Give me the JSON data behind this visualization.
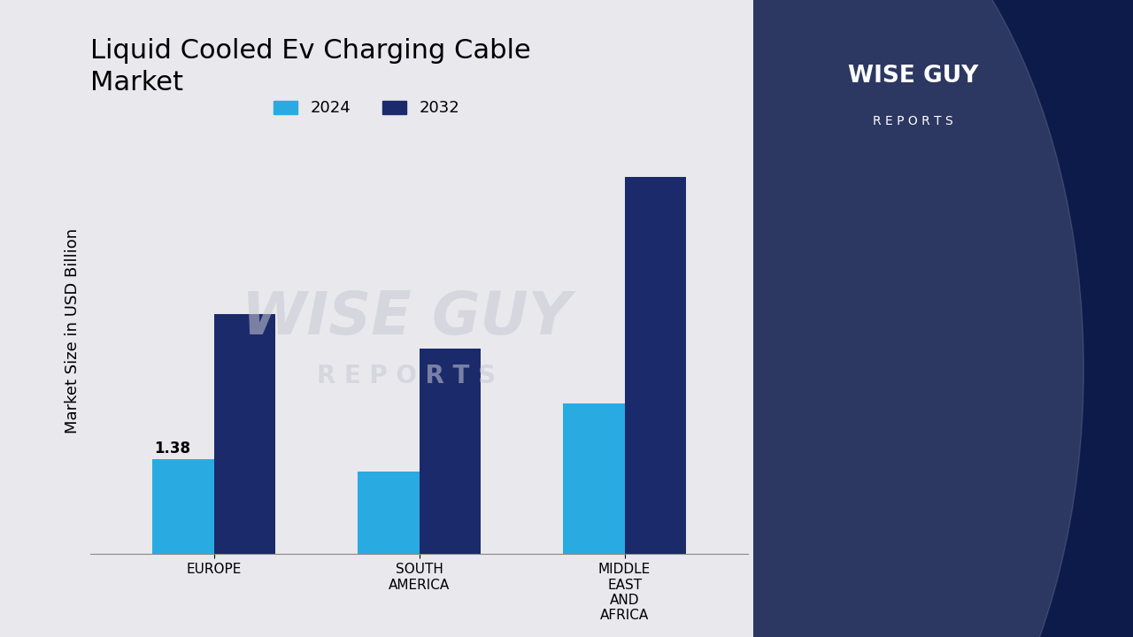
{
  "title": "Liquid Cooled Ev Charging Cable\nMarket",
  "ylabel": "Market Size in USD Billion",
  "categories": [
    "EUROPE",
    "SOUTH\nAMERICA",
    "MIDDLE\nEAST\nAND\nAFRICA"
  ],
  "values_2024": [
    1.38,
    1.2,
    2.2
  ],
  "values_2032": [
    3.5,
    3.0,
    5.5
  ],
  "color_2024": "#29ABE2",
  "color_2032": "#1B2A6B",
  "background_color": "#E8E8ED",
  "right_panel_color": "#0D1B4B",
  "title_color": "#000000",
  "annotation_text": "1.38",
  "legend_labels": [
    "2024",
    "2032"
  ],
  "bar_width": 0.3,
  "title_fontsize": 22,
  "axis_label_fontsize": 13,
  "tick_label_fontsize": 11,
  "legend_fontsize": 13,
  "watermark_line1": "WISE GUY",
  "watermark_line2": "R E P O R T S",
  "watermark_color": "#c8c8d4",
  "watermark_alpha": 0.55
}
